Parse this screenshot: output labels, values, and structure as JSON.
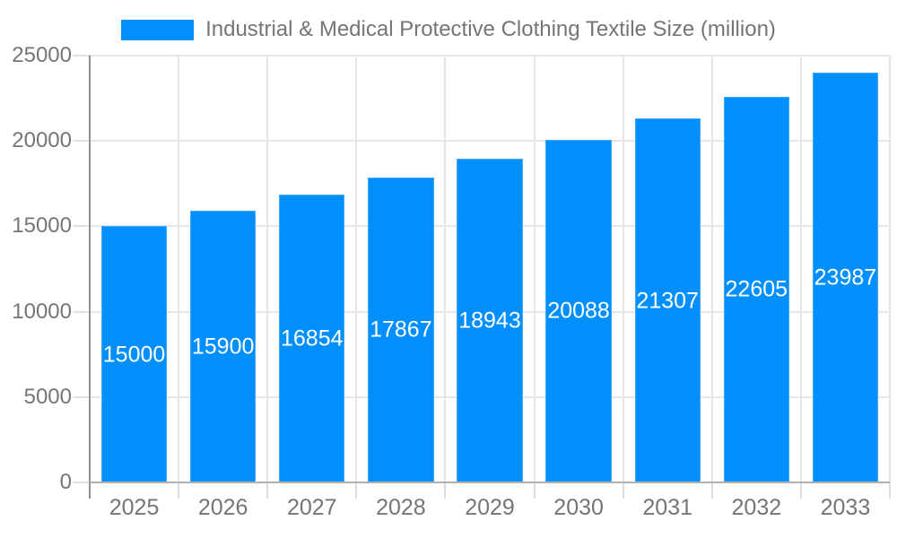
{
  "legend": {
    "label": "Industrial & Medical Protective Clothing Textile Size (million)",
    "swatch_color": "#008FFB"
  },
  "chart_data": {
    "type": "bar",
    "title": "Industrial & Medical Protective Clothing Textile Size (million)",
    "categories": [
      "2025",
      "2026",
      "2027",
      "2028",
      "2029",
      "2030",
      "2031",
      "2032",
      "2033"
    ],
    "values": [
      15000,
      15900,
      16854,
      17867,
      18943,
      20088,
      21307,
      22605,
      23987
    ],
    "xlabel": "",
    "ylabel": "",
    "ylim": [
      0,
      25000
    ],
    "yticks": [
      0,
      5000,
      10000,
      15000,
      20000,
      25000
    ],
    "grid": true,
    "legend_position": "top",
    "bar_color": "#008FFB",
    "value_label_color": "#ffffff"
  },
  "colors": {
    "bar": "#008FFB",
    "axis_text": "#757575",
    "grid_line": "#e6e6e6",
    "y_axis_line": "#8f8f8f",
    "x_axis_line": "#b0b0b0",
    "tick_mark": "#dcdcdc",
    "background": "#ffffff"
  }
}
